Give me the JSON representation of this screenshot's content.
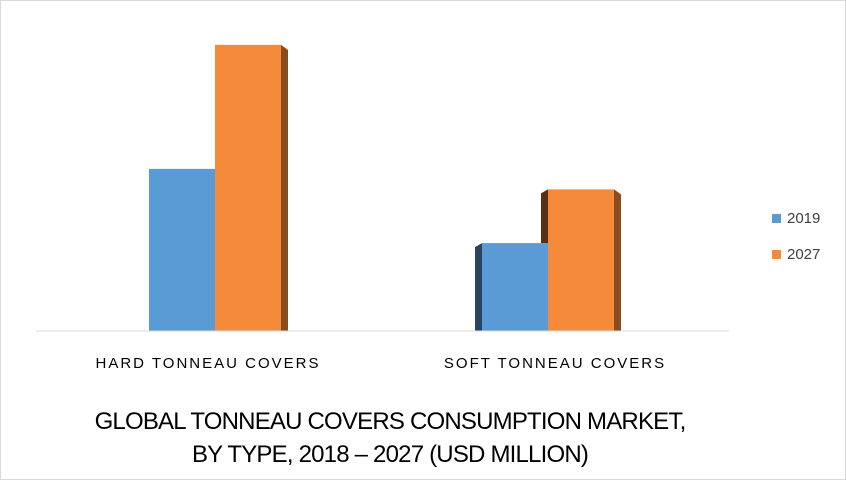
{
  "chart_data": {
    "type": "bar",
    "categories": [
      "HARD TONNEAU COVERS",
      "SOFT TONNEAU COVERS"
    ],
    "series": [
      {
        "name": "2019",
        "values": [
          166,
          90
        ],
        "color": "#5B9BD5"
      },
      {
        "name": "2027",
        "values": [
          293,
          145
        ],
        "color": "#F58A3A"
      }
    ],
    "ylim": [
      0,
      300
    ],
    "grid": false,
    "legend": "right",
    "title_lines": [
      "GLOBAL TONNEAU COVERS CONSUMPTION MARKET,",
      "BY TYPE, 2018 – 2027 (USD MILLION)"
    ],
    "style": "3d-bar"
  }
}
